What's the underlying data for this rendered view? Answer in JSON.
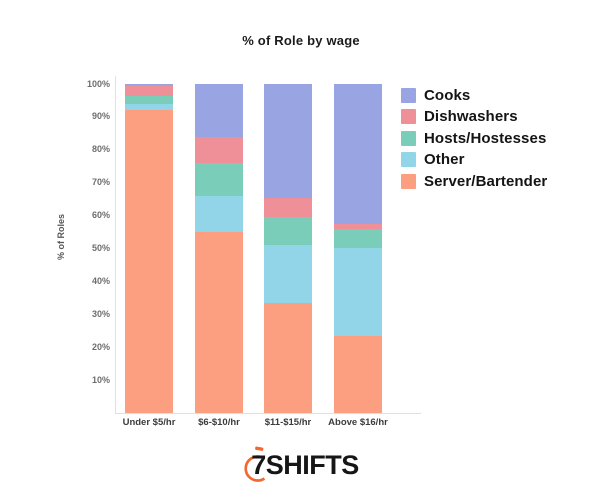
{
  "chart_data": {
    "type": "bar",
    "subtype": "stacked-percent",
    "title": "% of Role by wage",
    "xlabel": "",
    "ylabel": "% of Roles",
    "ylim": [
      0,
      100
    ],
    "grid": false,
    "legend_position": "top-right",
    "categories": [
      "Under $5/hr",
      "$6-$10/hr",
      "$11-$15/hr",
      "Above $16/hr"
    ],
    "stack_order": "bottom-to-top",
    "series": [
      {
        "name": "Server/Bartender",
        "color": "#fb9f80",
        "values": [
          92,
          55,
          33.5,
          23.5
        ]
      },
      {
        "name": "Other",
        "color": "#92d5e9",
        "values": [
          2,
          11,
          17.5,
          26.5
        ]
      },
      {
        "name": "Hosts/Hostesses",
        "color": "#7aceb9",
        "values": [
          2.5,
          10,
          8.5,
          6
        ]
      },
      {
        "name": "Dishwashers",
        "color": "#ef9099",
        "values": [
          3,
          8,
          6,
          1.5
        ]
      },
      {
        "name": "Cooks",
        "color": "#99a5e3",
        "values": [
          0.5,
          16,
          34.5,
          42.5
        ]
      }
    ],
    "legend_order": [
      "Cooks",
      "Dishwashers",
      "Hosts/Hostesses",
      "Other",
      "Server/Bartender"
    ],
    "y_ticks": [
      "100%",
      "90%",
      "80%",
      "70%",
      "60%",
      "50%",
      "40%",
      "30%",
      "20%",
      "10%"
    ]
  },
  "footer": {
    "brand": "7SHIFTS",
    "brand_mark": "stopwatch-icon",
    "brand_color": "#f2682f"
  }
}
